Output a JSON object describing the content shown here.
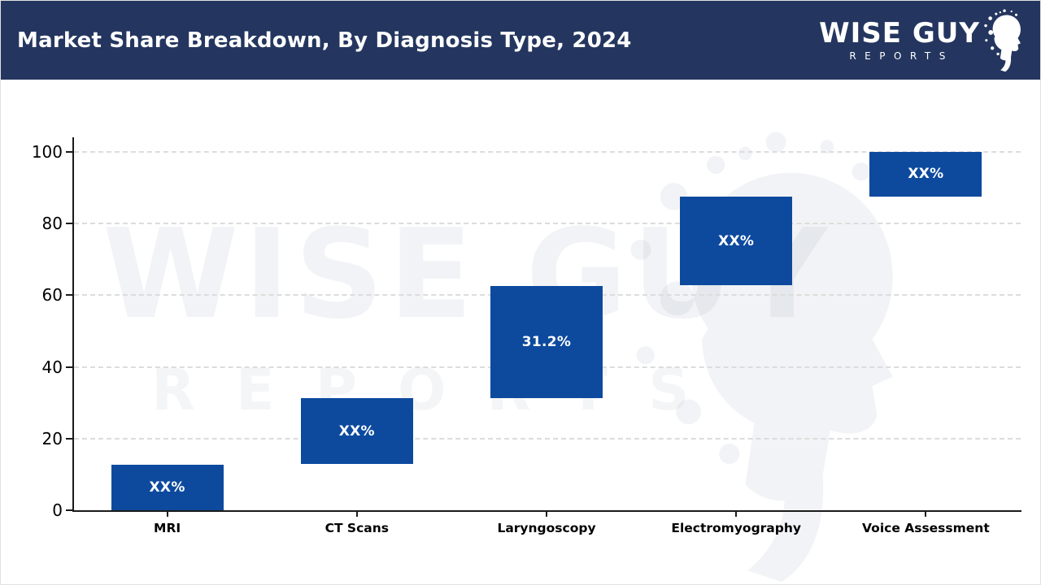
{
  "header": {
    "title": "Market Share Breakdown, By Diagnosis Type, 2024",
    "background_color": "#24365f",
    "logo": {
      "line1": "WISE GUY",
      "line2": "REPORTS"
    }
  },
  "watermark": {
    "line1": "WISE GUY",
    "line2": "REPORTS"
  },
  "chart_data": {
    "type": "bar",
    "subtype": "floating-waterfall",
    "title": "Market Share Breakdown, By Diagnosis Type, 2024",
    "categories": [
      "MRI",
      "CT Scans",
      "Laryngoscopy",
      "Electromyography",
      "Voice Assessment"
    ],
    "segments": [
      {
        "category": "MRI",
        "start": 0,
        "end": 12.7,
        "label": "XX%"
      },
      {
        "category": "CT Scans",
        "start": 12.9,
        "end": 31.3,
        "label": "XX%"
      },
      {
        "category": "Laryngoscopy",
        "start": 31.4,
        "end": 62.6,
        "label": "31.2%"
      },
      {
        "category": "Electromyography",
        "start": 62.7,
        "end": 87.6,
        "label": "XX%"
      },
      {
        "category": "Voice Assessment",
        "start": 87.6,
        "end": 100,
        "label": "XX%"
      }
    ],
    "yticks": [
      0,
      20,
      40,
      60,
      80,
      100
    ],
    "ylim": [
      0,
      103.5
    ],
    "xlabel": "",
    "ylabel": "",
    "grid": "dashed-horizontal",
    "legend": "none",
    "bar_color": "#0d4a9e",
    "bar_label_color": "#ffffff",
    "axis_color": "#1a1a1a",
    "gridline_color": "#dcdcdc"
  }
}
